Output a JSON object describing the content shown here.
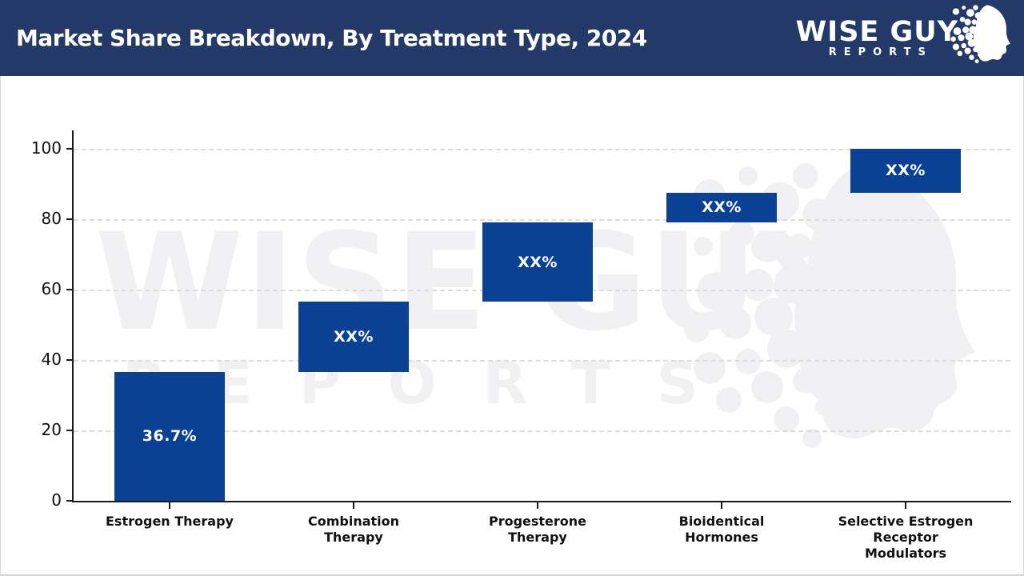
{
  "header": {
    "title": "Market Share Breakdown, By Treatment Type, 2024",
    "background_color": "#233968",
    "logo": {
      "line1": "WISE GUY",
      "line2": "REPORTS"
    }
  },
  "watermark": {
    "line1": "WISE GUY",
    "line2": "REPORTS"
  },
  "chart_data": {
    "type": "bar",
    "subtype": "waterfall-floating-bars",
    "title": "Market Share Breakdown, By Treatment Type, 2024",
    "xlabel": "",
    "ylabel": "",
    "categories": [
      "Estrogen Therapy",
      "Combination\nTherapy",
      "Progesterone\nTherapy",
      "Bioidentical\nHormones",
      "Selective Estrogen\nReceptor\nModulators"
    ],
    "segments": [
      {
        "start": 0,
        "end": 36.7,
        "label": "36.7%"
      },
      {
        "start": 36.7,
        "end": 56.5,
        "label": "XX%"
      },
      {
        "start": 56.5,
        "end": 79.0,
        "label": "XX%"
      },
      {
        "start": 79.0,
        "end": 87.6,
        "label": "XX%"
      },
      {
        "start": 87.6,
        "end": 100,
        "label": "XX%"
      }
    ],
    "yticks": [
      0,
      20,
      40,
      60,
      80,
      100
    ],
    "ylim": [
      0,
      105
    ],
    "grid": true,
    "grid_style": "dashed",
    "bar_color": "#0a4195",
    "bar_label_color": "#ffffff",
    "axis_color": "#1a1a1a",
    "gridline_color": "#dcdcdc",
    "legend": null
  }
}
